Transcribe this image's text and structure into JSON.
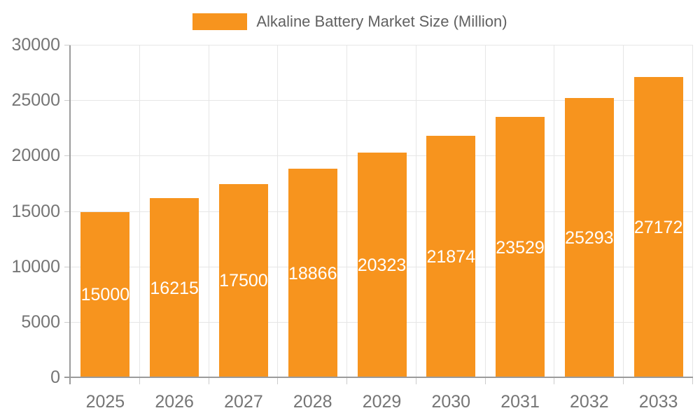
{
  "legend": {
    "label": "Alkaline Battery Market Size (Million)"
  },
  "chart_data": {
    "type": "bar",
    "title": "Alkaline Battery Market Size (Million)",
    "xlabel": "",
    "ylabel": "",
    "categories": [
      "2025",
      "2026",
      "2027",
      "2028",
      "2029",
      "2030",
      "2031",
      "2032",
      "2033"
    ],
    "series": [
      {
        "name": "Alkaline Battery Market Size (Million)",
        "values": [
          15000,
          16215,
          17500,
          18866,
          20323,
          21874,
          23529,
          25293,
          27172
        ]
      }
    ],
    "value_labels": [
      15000,
      16215,
      17500,
      18866,
      20323,
      21874,
      23529,
      25293,
      27172
    ],
    "ylim": [
      0,
      30000
    ],
    "y_ticks": [
      0,
      5000,
      10000,
      15000,
      20000,
      25000,
      30000
    ],
    "grid": true,
    "legend_position": "top",
    "colors": {
      "bar": "#f7941e",
      "value_label": "#ffffff",
      "gridline": "#e6e6e6",
      "tick": "#cccccc",
      "axis": "#9b9b9b",
      "tick_label": "#757575",
      "legend_text": "#616161"
    }
  }
}
